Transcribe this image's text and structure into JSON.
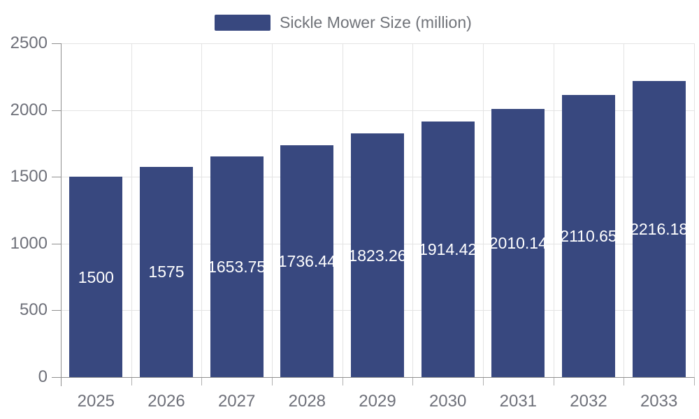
{
  "legend": {
    "label": "Sickle Mower Size (million)"
  },
  "chart_data": {
    "type": "bar",
    "title": "Sickle Mower Size (million)",
    "categories": [
      "2025",
      "2026",
      "2027",
      "2028",
      "2029",
      "2030",
      "2031",
      "2032",
      "2033"
    ],
    "values": [
      1500,
      1575,
      1653.75,
      1736.44,
      1823.26,
      1914.42,
      2010.14,
      2110.65,
      2216.18
    ],
    "value_labels": [
      "1500",
      "1575",
      "1653.75",
      "1736.44",
      "1823.26",
      "1914.42",
      "2010.14",
      "2110.65",
      "2216.18"
    ],
    "xlabel": "",
    "ylabel": "",
    "ylim": [
      0,
      2500
    ],
    "y_ticks": [
      0,
      500,
      1000,
      1500,
      2000,
      2500
    ],
    "grid": true,
    "legend_position": "top",
    "colors": {
      "bar": "#38487F",
      "bar_label": "#FFFFFF",
      "axis_text": "#6E7079",
      "legend_text": "#707379",
      "axis_line": "#8F8F8F",
      "gridline": "#E3E3E3",
      "tick": "#B0B0B0"
    }
  }
}
